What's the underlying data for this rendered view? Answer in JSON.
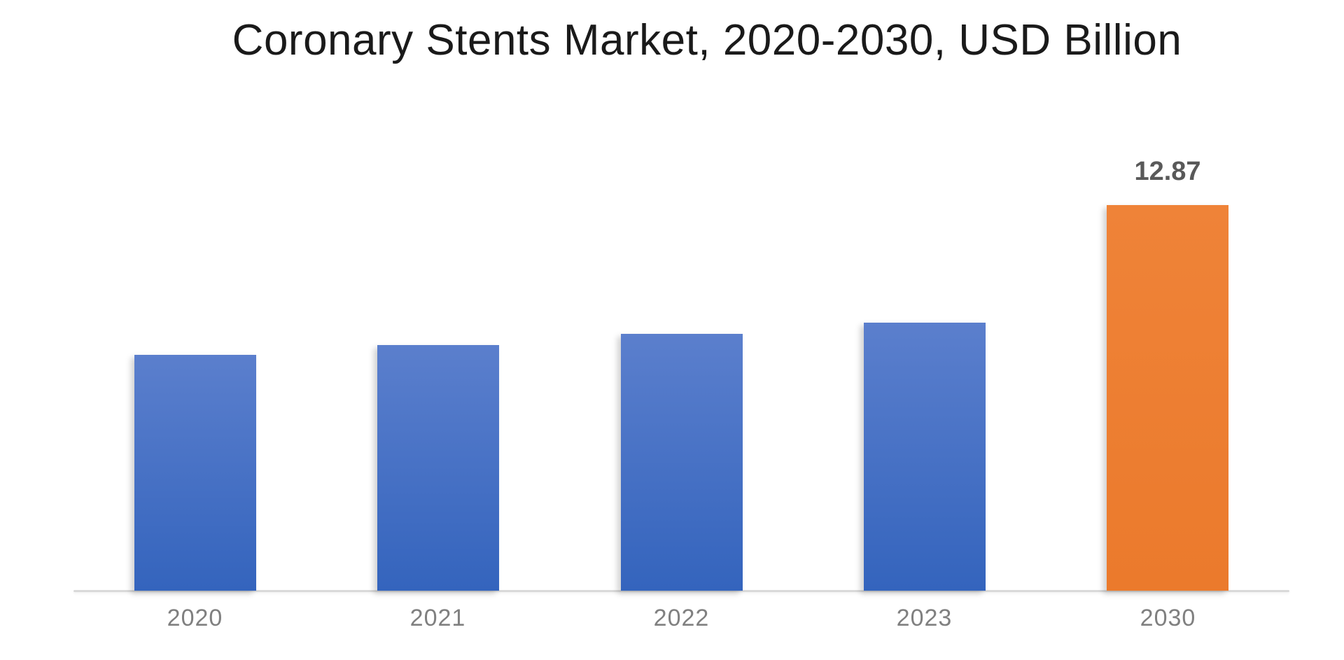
{
  "title": "Coronary Stents Market, 2020-2030, USD Billion",
  "chart_data": {
    "type": "bar",
    "title": "Coronary Stents Market, 2020-2030, USD Billion",
    "categories": [
      "2020",
      "2021",
      "2022",
      "2023",
      "2030"
    ],
    "values": [
      7.87,
      8.2,
      8.57,
      8.95,
      12.87
    ],
    "data_labels": [
      "",
      "",
      "",
      "",
      "12.87"
    ],
    "highlight_index": 4,
    "highlighted_category": "2030",
    "xlabel": "",
    "ylabel": "",
    "y_axis_visible": false,
    "grid": false,
    "legend": false
  },
  "colors": {
    "background": "#ffffff",
    "title_text": "#1a1a1a",
    "bar_blue_top": "#5b7fcd",
    "bar_blue_bottom": "#3464bd",
    "bar_orange_top": "#ef8338",
    "bar_orange_bottom": "#eb7a2c",
    "axis_line": "#d9d9d9",
    "x_label_text": "#808080",
    "data_label_text": "#595959"
  }
}
